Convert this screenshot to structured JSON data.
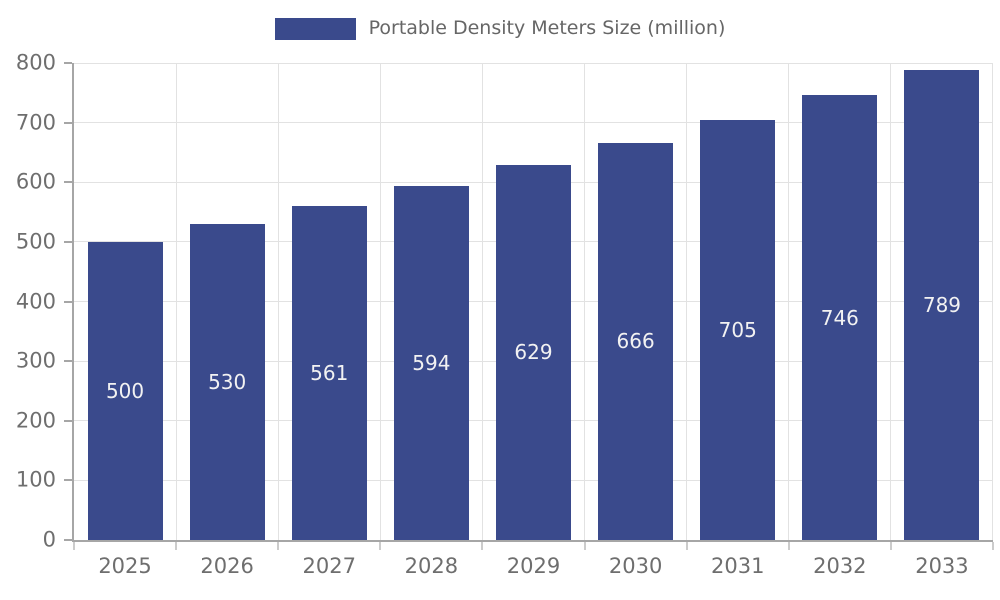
{
  "chart_data": {
    "type": "bar",
    "title": "",
    "legend_position": "top-center",
    "label_position": "inside-center",
    "grid": true,
    "categories": [
      "2025",
      "2026",
      "2027",
      "2028",
      "2029",
      "2030",
      "2031",
      "2032",
      "2033"
    ],
    "series": [
      {
        "name": "Portable Density Meters Size (million)",
        "values": [
          500,
          530,
          561,
          594,
          629,
          666,
          705,
          746,
          789
        ]
      }
    ],
    "ylim": [
      0,
      800
    ],
    "yticks": [
      0,
      100,
      200,
      300,
      400,
      500,
      600,
      700,
      800
    ],
    "xlabel": "",
    "ylabel": "",
    "colors": {
      "bar": "#3A4A8C",
      "bar_label_text": "#F2F2F2",
      "axis_line": "#A6A6A6",
      "grid_line": "#E2E2E2",
      "x_tick_mark": "#CCCCCC",
      "tick_text": "#6E6E6E",
      "legend_text": "#666666",
      "background": "#FFFFFF"
    }
  }
}
